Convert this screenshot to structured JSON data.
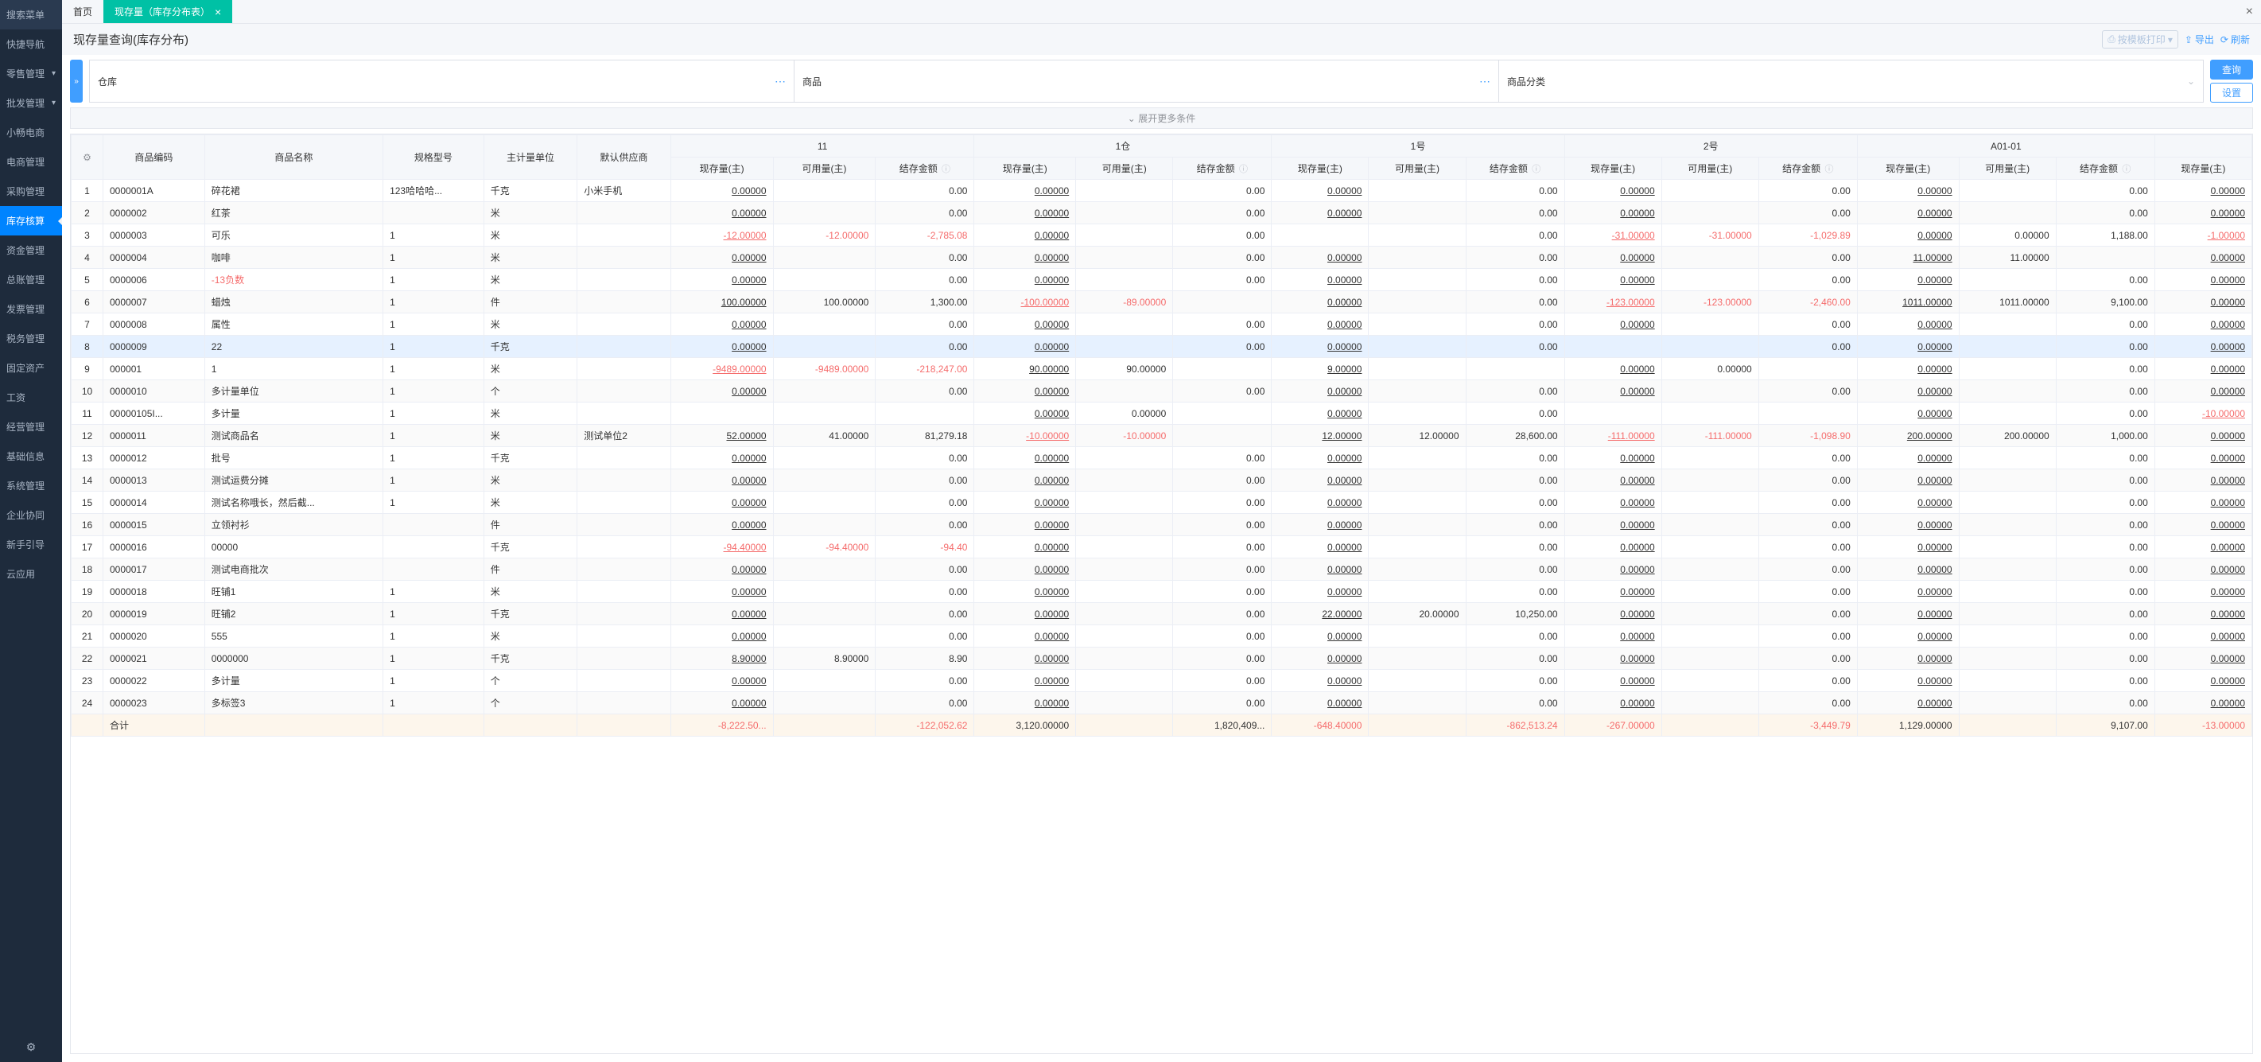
{
  "sidebar": {
    "items": [
      {
        "label": "搜索菜单",
        "expandable": false
      },
      {
        "label": "快捷导航",
        "expandable": false
      },
      {
        "label": "零售管理",
        "expandable": true
      },
      {
        "label": "批发管理",
        "expandable": true
      },
      {
        "label": "小畅电商",
        "expandable": false
      },
      {
        "label": "电商管理",
        "expandable": false
      },
      {
        "label": "采购管理",
        "expandable": false
      },
      {
        "label": "库存核算",
        "expandable": false,
        "active": true
      },
      {
        "label": "资金管理",
        "expandable": false
      },
      {
        "label": "总账管理",
        "expandable": false
      },
      {
        "label": "发票管理",
        "expandable": false
      },
      {
        "label": "税务管理",
        "expandable": false
      },
      {
        "label": "固定资产",
        "expandable": false
      },
      {
        "label": "工资",
        "expandable": false
      },
      {
        "label": "经营管理",
        "expandable": false
      },
      {
        "label": "基础信息",
        "expandable": false
      },
      {
        "label": "系统管理",
        "expandable": false
      },
      {
        "label": "企业协同",
        "expandable": false
      },
      {
        "label": "新手引导",
        "expandable": false
      },
      {
        "label": "云应用",
        "expandable": false
      }
    ]
  },
  "tabs": [
    {
      "label": "首页",
      "closable": false
    },
    {
      "label": "现存量（库存分布表）",
      "closable": true,
      "active": true
    }
  ],
  "page": {
    "title": "现存量查询(库存分布)",
    "actions": {
      "print_template": "按模板打印",
      "export": "导出",
      "refresh": "刷新"
    }
  },
  "filter": {
    "warehouse_label": "仓库",
    "product_label": "商品",
    "category_label": "商品分类",
    "query_btn": "查询",
    "settings_btn": "设置",
    "expand_label": "展开更多条件"
  },
  "table": {
    "fixed_headers": {
      "code": "商品编码",
      "name": "商品名称",
      "spec": "规格型号",
      "unit": "主计量单位",
      "supplier": "默认供应商"
    },
    "warehouses": [
      "11",
      "1仓",
      "1号",
      "2号",
      "A01-01",
      ""
    ],
    "sub_headers": {
      "stock": "现存量(主)",
      "available": "可用量(主)",
      "amount": "结存金额"
    },
    "total_label": "合计",
    "rows": [
      {
        "idx": 1,
        "code": "0000001A",
        "name": "碎花裙",
        "spec": "123哈哈哈...",
        "unit": "千克",
        "supplier": "小米手机",
        "w": [
          [
            0,
            null,
            0
          ],
          [
            0,
            null,
            0
          ],
          [
            0,
            null,
            0
          ],
          [
            0,
            null,
            0
          ],
          [
            0,
            null,
            0
          ],
          [
            0
          ]
        ]
      },
      {
        "idx": 2,
        "code": "0000002",
        "name": "红茶",
        "spec": "",
        "unit": "米",
        "supplier": "",
        "w": [
          [
            0,
            null,
            0
          ],
          [
            0,
            null,
            0
          ],
          [
            0,
            null,
            0
          ],
          [
            0,
            null,
            0
          ],
          [
            0,
            null,
            0
          ],
          [
            0
          ]
        ]
      },
      {
        "idx": 3,
        "code": "0000003",
        "name": "可乐",
        "spec": "1",
        "unit": "米",
        "supplier": "",
        "w": [
          [
            -12,
            -12,
            -2785.08
          ],
          [
            0,
            null,
            0
          ],
          [
            null,
            null,
            0
          ],
          [
            -31,
            -31,
            -1029.89
          ],
          [
            0,
            0,
            1188.0
          ],
          [
            -1
          ]
        ]
      },
      {
        "idx": 4,
        "code": "0000004",
        "name": "咖啡",
        "spec": "1",
        "unit": "米",
        "supplier": "",
        "w": [
          [
            0,
            null,
            0
          ],
          [
            0,
            null,
            0
          ],
          [
            0,
            null,
            0
          ],
          [
            0,
            null,
            0
          ],
          [
            11,
            11,
            null
          ],
          [
            0
          ]
        ]
      },
      {
        "idx": 5,
        "code": "0000006",
        "name": "-13负数",
        "name_neg": true,
        "spec": "1",
        "unit": "米",
        "supplier": "",
        "w": [
          [
            0,
            null,
            0
          ],
          [
            0,
            null,
            0
          ],
          [
            0,
            null,
            0
          ],
          [
            0,
            null,
            0
          ],
          [
            0,
            null,
            0
          ],
          [
            0
          ]
        ]
      },
      {
        "idx": 6,
        "code": "0000007",
        "name": "蜡烛",
        "spec": "1",
        "unit": "件",
        "supplier": "",
        "w": [
          [
            100,
            100,
            1300.0
          ],
          [
            -100,
            -89,
            null
          ],
          [
            0,
            null,
            0
          ],
          [
            -123,
            -123,
            -2460.0
          ],
          [
            1011,
            1011,
            9100.0
          ],
          [
            0
          ]
        ]
      },
      {
        "idx": 7,
        "code": "0000008",
        "name": "属性",
        "spec": "1",
        "unit": "米",
        "supplier": "",
        "w": [
          [
            0,
            null,
            0
          ],
          [
            0,
            null,
            0
          ],
          [
            0,
            null,
            0
          ],
          [
            0,
            null,
            0
          ],
          [
            0,
            null,
            0
          ],
          [
            0
          ]
        ]
      },
      {
        "idx": 8,
        "code": "0000009",
        "name": "22",
        "spec": "1",
        "unit": "千克",
        "supplier": "",
        "highlight": true,
        "w": [
          [
            0,
            null,
            0
          ],
          [
            0,
            null,
            0
          ],
          [
            0,
            null,
            0
          ],
          [
            null,
            null,
            0
          ],
          [
            0,
            null,
            0
          ],
          [
            0
          ]
        ]
      },
      {
        "idx": 9,
        "code": "000001",
        "name": "1",
        "spec": "1",
        "unit": "米",
        "supplier": "",
        "w": [
          [
            -9489,
            -9489,
            -218247.0
          ],
          [
            90,
            90,
            null
          ],
          [
            9.0,
            null,
            null
          ],
          [
            0,
            0,
            null
          ],
          [
            0,
            null,
            0
          ],
          [
            0
          ]
        ]
      },
      {
        "idx": 10,
        "code": "0000010",
        "name": "多计量单位",
        "spec": "1",
        "unit": "个",
        "supplier": "",
        "w": [
          [
            0,
            null,
            0
          ],
          [
            0,
            null,
            0
          ],
          [
            0,
            null,
            0
          ],
          [
            0,
            null,
            0
          ],
          [
            0,
            null,
            0
          ],
          [
            0
          ]
        ]
      },
      {
        "idx": 11,
        "code": "00000105I...",
        "name": "多计量",
        "spec": "1",
        "unit": "米",
        "supplier": "",
        "w": [
          [
            null,
            null,
            null
          ],
          [
            0,
            0,
            null
          ],
          [
            0,
            null,
            0
          ],
          [
            null,
            null,
            null
          ],
          [
            0,
            null,
            0
          ],
          [
            -10
          ]
        ]
      },
      {
        "idx": 12,
        "code": "0000011",
        "name": "测试商品名",
        "spec": "1",
        "unit": "米",
        "supplier": "测试单位2",
        "w": [
          [
            52,
            41,
            81279.18
          ],
          [
            -10,
            -10,
            null
          ],
          [
            12,
            12,
            28600.0
          ],
          [
            -111,
            -111,
            -1098.9
          ],
          [
            200,
            200,
            1000.0
          ],
          [
            0
          ]
        ]
      },
      {
        "idx": 13,
        "code": "0000012",
        "name": "批号",
        "spec": "1",
        "unit": "千克",
        "supplier": "",
        "w": [
          [
            0,
            null,
            0
          ],
          [
            0,
            null,
            0
          ],
          [
            0,
            null,
            0
          ],
          [
            0,
            null,
            0
          ],
          [
            0,
            null,
            0
          ],
          [
            0
          ]
        ]
      },
      {
        "idx": 14,
        "code": "0000013",
        "name": "测试运费分摊",
        "spec": "1",
        "unit": "米",
        "supplier": "",
        "w": [
          [
            0,
            null,
            0
          ],
          [
            0,
            null,
            0
          ],
          [
            0,
            null,
            0
          ],
          [
            0,
            null,
            0
          ],
          [
            0,
            null,
            0
          ],
          [
            0
          ]
        ]
      },
      {
        "idx": 15,
        "code": "0000014",
        "name": "测试名称哦长，然后截...",
        "spec": "1",
        "unit": "米",
        "supplier": "",
        "w": [
          [
            0,
            null,
            0
          ],
          [
            0,
            null,
            0
          ],
          [
            0,
            null,
            0
          ],
          [
            0,
            null,
            0
          ],
          [
            0,
            null,
            0
          ],
          [
            0
          ]
        ]
      },
      {
        "idx": 16,
        "code": "0000015",
        "name": "立领衬衫",
        "spec": "",
        "unit": "件",
        "supplier": "",
        "w": [
          [
            0,
            null,
            0
          ],
          [
            0,
            null,
            0
          ],
          [
            0,
            null,
            0
          ],
          [
            0,
            null,
            0
          ],
          [
            0,
            null,
            0
          ],
          [
            0
          ]
        ]
      },
      {
        "idx": 17,
        "code": "0000016",
        "name": "00000",
        "spec": "",
        "unit": "千克",
        "supplier": "",
        "w": [
          [
            -94.4,
            -94.4,
            -94.4
          ],
          [
            0,
            null,
            0
          ],
          [
            0,
            null,
            0
          ],
          [
            0,
            null,
            0
          ],
          [
            0,
            null,
            0
          ],
          [
            0
          ]
        ]
      },
      {
        "idx": 18,
        "code": "0000017",
        "name": "测试电商批次",
        "spec": "",
        "unit": "件",
        "supplier": "",
        "w": [
          [
            0,
            null,
            0
          ],
          [
            0,
            null,
            0
          ],
          [
            0,
            null,
            0
          ],
          [
            0,
            null,
            0
          ],
          [
            0,
            null,
            0
          ],
          [
            0
          ]
        ]
      },
      {
        "idx": 19,
        "code": "0000018",
        "name": "旺铺1",
        "spec": "1",
        "unit": "米",
        "supplier": "",
        "w": [
          [
            0,
            null,
            0
          ],
          [
            0,
            null,
            0
          ],
          [
            0,
            null,
            0
          ],
          [
            0,
            null,
            0
          ],
          [
            0,
            null,
            0
          ],
          [
            0
          ]
        ]
      },
      {
        "idx": 20,
        "code": "0000019",
        "name": "旺铺2",
        "spec": "1",
        "unit": "千克",
        "supplier": "",
        "w": [
          [
            0,
            null,
            0
          ],
          [
            0,
            null,
            0
          ],
          [
            22,
            20,
            10250.0
          ],
          [
            0,
            null,
            0
          ],
          [
            0,
            null,
            0
          ],
          [
            0
          ]
        ]
      },
      {
        "idx": 21,
        "code": "0000020",
        "name": "555",
        "spec": "1",
        "unit": "米",
        "supplier": "",
        "w": [
          [
            0,
            null,
            0
          ],
          [
            0,
            null,
            0
          ],
          [
            0,
            null,
            0
          ],
          [
            0,
            null,
            0
          ],
          [
            0,
            null,
            0
          ],
          [
            0
          ]
        ]
      },
      {
        "idx": 22,
        "code": "0000021",
        "name": "0000000",
        "spec": "1",
        "unit": "千克",
        "supplier": "",
        "w": [
          [
            8.9,
            8.9,
            8.9
          ],
          [
            0,
            null,
            0
          ],
          [
            0,
            null,
            0
          ],
          [
            0,
            null,
            0
          ],
          [
            0,
            null,
            0
          ],
          [
            0
          ]
        ]
      },
      {
        "idx": 23,
        "code": "0000022",
        "name": "多计量",
        "spec": "1",
        "unit": "个",
        "supplier": "",
        "w": [
          [
            0,
            null,
            0
          ],
          [
            0,
            null,
            0
          ],
          [
            0,
            null,
            0
          ],
          [
            0,
            null,
            0
          ],
          [
            0,
            null,
            0
          ],
          [
            0
          ]
        ]
      },
      {
        "idx": 24,
        "code": "0000023",
        "name": "多标签3",
        "spec": "1",
        "unit": "个",
        "supplier": "",
        "w": [
          [
            0,
            null,
            0
          ],
          [
            0,
            null,
            0
          ],
          [
            0,
            null,
            0
          ],
          [
            0,
            null,
            0
          ],
          [
            0,
            null,
            0
          ],
          [
            0
          ]
        ]
      }
    ],
    "totals": {
      "w": [
        [
          "-8,222.50...",
          null,
          "-122,052.62"
        ],
        [
          "3,120.00000",
          null,
          "1,820,409..."
        ],
        [
          "-648.40000",
          null,
          "-862,513.24"
        ],
        [
          "-267.00000",
          null,
          "-3,449.79"
        ],
        [
          "1,129.00000",
          null,
          "9,107.00"
        ],
        [
          "-13.00000"
        ]
      ]
    }
  }
}
